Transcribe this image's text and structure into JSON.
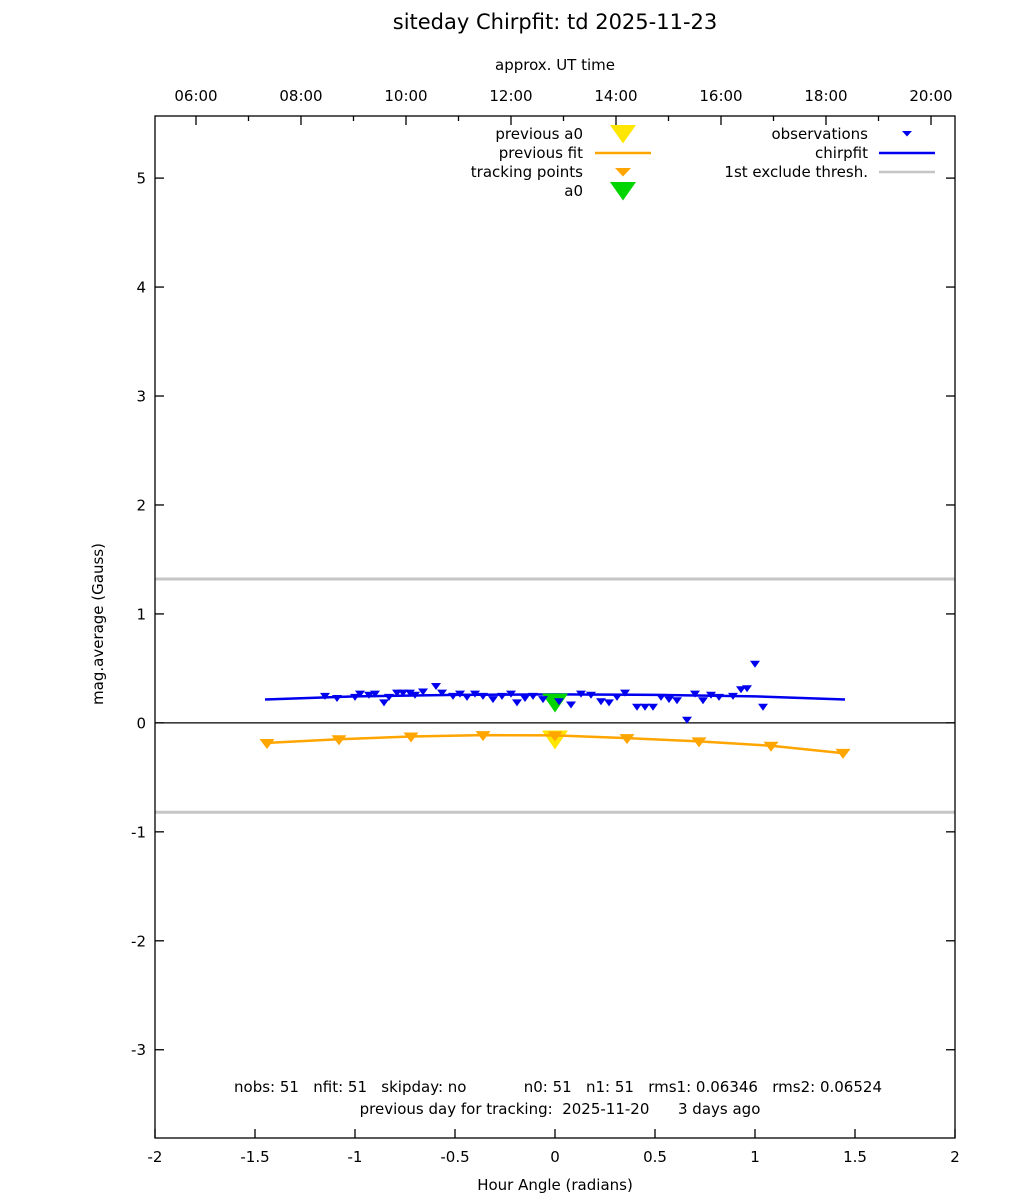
{
  "chart_data": {
    "type": "scatter",
    "title": "siteday Chirpfit:  td  2025-11-23",
    "top_axis": {
      "label": "approx. UT time",
      "ticks": [
        {
          "label": "06:00",
          "ha": -1.795
        },
        {
          "label": "08:00",
          "ha": -1.27
        },
        {
          "label": "10:00",
          "ha": -0.745
        },
        {
          "label": "12:00",
          "ha": -0.22
        },
        {
          "label": "14:00",
          "ha": 0.305
        },
        {
          "label": "16:00",
          "ha": 0.83
        },
        {
          "label": "18:00",
          "ha": 1.355
        },
        {
          "label": "20:00",
          "ha": 1.88
        }
      ],
      "minor_ha": [
        -1.5325,
        -1.0075,
        -0.4825,
        0.0425,
        0.5675,
        1.0925,
        1.6175
      ]
    },
    "xlabel": "Hour Angle (radians)",
    "ylabel": "mag.average (Gauss)",
    "xlim": [
      -2,
      2
    ],
    "ylim": [
      -3.81,
      5.57
    ],
    "xticks": [
      -2,
      -1.5,
      -1,
      -0.5,
      0,
      0.5,
      1,
      1.5,
      2
    ],
    "yticks": [
      -3,
      -2,
      -1,
      0,
      1,
      2,
      3,
      4,
      5
    ],
    "zero_line": 0,
    "exclude_thresholds": [
      1.32,
      -0.82
    ],
    "colors": {
      "observations": "#0000ee",
      "chirpfit": "#0000ee",
      "previous_fit": "#ffa500",
      "tracking_points": "#ffa500",
      "previous_a0": "#ffe600",
      "a0": "#00d500",
      "threshold": "#c6c6c6",
      "axis": "#000000"
    },
    "series": {
      "observations": [
        [
          -1.15,
          0.25
        ],
        [
          -1.09,
          0.23
        ],
        [
          -1.0,
          0.24
        ],
        [
          -0.975,
          0.27
        ],
        [
          -0.93,
          0.26
        ],
        [
          -0.9,
          0.27
        ],
        [
          -0.855,
          0.19
        ],
        [
          -0.83,
          0.24
        ],
        [
          -0.79,
          0.28
        ],
        [
          -0.76,
          0.28
        ],
        [
          -0.725,
          0.28
        ],
        [
          -0.7,
          0.26
        ],
        [
          -0.66,
          0.29
        ],
        [
          -0.595,
          0.34
        ],
        [
          -0.565,
          0.28
        ],
        [
          -0.51,
          0.25
        ],
        [
          -0.475,
          0.27
        ],
        [
          -0.44,
          0.24
        ],
        [
          -0.4,
          0.27
        ],
        [
          -0.36,
          0.25
        ],
        [
          -0.31,
          0.22
        ],
        [
          -0.265,
          0.25
        ],
        [
          -0.22,
          0.27
        ],
        [
          -0.19,
          0.19
        ],
        [
          -0.15,
          0.23
        ],
        [
          -0.11,
          0.25
        ],
        [
          -0.06,
          0.22
        ],
        [
          0.02,
          0.2
        ],
        [
          0.08,
          0.17
        ],
        [
          0.13,
          0.27
        ],
        [
          0.18,
          0.26
        ],
        [
          0.23,
          0.2
        ],
        [
          0.27,
          0.19
        ],
        [
          0.31,
          0.24
        ],
        [
          0.35,
          0.28
        ],
        [
          0.41,
          0.15
        ],
        [
          0.45,
          0.15
        ],
        [
          0.49,
          0.15
        ],
        [
          0.53,
          0.24
        ],
        [
          0.57,
          0.22
        ],
        [
          0.61,
          0.21
        ],
        [
          0.66,
          0.03
        ],
        [
          0.7,
          0.27
        ],
        [
          0.74,
          0.21
        ],
        [
          0.78,
          0.26
        ],
        [
          0.82,
          0.24
        ],
        [
          0.89,
          0.25
        ],
        [
          0.93,
          0.31
        ],
        [
          0.96,
          0.32
        ],
        [
          1.0,
          0.545
        ],
        [
          1.04,
          0.15
        ]
      ],
      "chirpfit": [
        [
          -1.45,
          0.215
        ],
        [
          -1.0,
          0.243
        ],
        [
          -0.5,
          0.257
        ],
        [
          0,
          0.262
        ],
        [
          0.5,
          0.257
        ],
        [
          1.0,
          0.243
        ],
        [
          1.45,
          0.215
        ]
      ],
      "previous_fit": [
        [
          -1.45,
          -0.185
        ],
        [
          -1.08,
          -0.15
        ],
        [
          -0.72,
          -0.125
        ],
        [
          -0.36,
          -0.112
        ],
        [
          0,
          -0.115
        ],
        [
          0.36,
          -0.14
        ],
        [
          0.72,
          -0.17
        ],
        [
          1.08,
          -0.21
        ],
        [
          1.45,
          -0.28
        ]
      ],
      "tracking_points": [
        [
          -1.44,
          -0.185
        ],
        [
          -1.08,
          -0.15
        ],
        [
          -0.72,
          -0.125
        ],
        [
          -0.36,
          -0.112
        ],
        [
          0.0,
          -0.115
        ],
        [
          0.36,
          -0.14
        ],
        [
          0.72,
          -0.17
        ],
        [
          1.08,
          -0.21
        ],
        [
          1.44,
          -0.275
        ]
      ],
      "previous_a0": [
        0.0,
        -0.14
      ],
      "a0": [
        0.0,
        0.2
      ]
    },
    "legend": {
      "left": [
        {
          "label": "previous a0",
          "marker": "triangle-large",
          "color": "#ffe600"
        },
        {
          "label": "previous fit",
          "marker": "line",
          "color": "#ffa500"
        },
        {
          "label": "tracking points",
          "marker": "triangle-small",
          "color": "#ffa500"
        },
        {
          "label": "a0",
          "marker": "triangle-large",
          "color": "#00d500"
        }
      ],
      "right": [
        {
          "label": "observations",
          "marker": "triangle-tiny",
          "color": "#0000ee"
        },
        {
          "label": "chirpfit",
          "marker": "line",
          "color": "#0000ee"
        },
        {
          "label": "1st exclude thresh.",
          "marker": "line",
          "color": "#c6c6c6"
        }
      ]
    },
    "stats": {
      "line1": "nobs: 51   nfit: 51   skipday: no            n0: 51   n1: 51   rms1: 0.06346   rms2: 0.06524",
      "line2": "previous day for tracking:  2025-11-20      3 days ago"
    }
  }
}
